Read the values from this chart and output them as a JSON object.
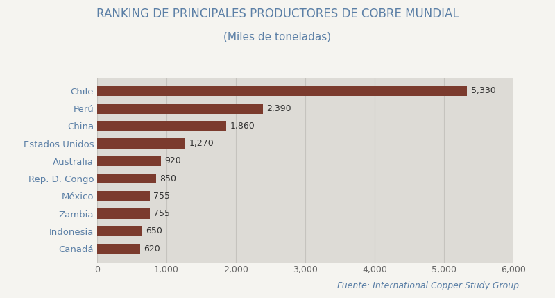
{
  "title_line1": "RANKING DE PRINCIPALES PRODUCTORES DE COBRE MUNDIAL",
  "title_line2": "(Miles de toneladas)",
  "title_color": "#5b7fa6",
  "subtitle_color": "#5b7fa6",
  "categories": [
    "Chile",
    "Perú",
    "China",
    "Estados Unidos",
    "Australia",
    "Rep. D. Congo",
    "México",
    "Zambia",
    "Indonesia",
    "Canadá"
  ],
  "values": [
    5330,
    2390,
    1860,
    1270,
    920,
    850,
    755,
    755,
    650,
    620
  ],
  "bar_color": "#7b3b2e",
  "value_label_color": "#333333",
  "background_color": "#f5f4f0",
  "plot_bg_color": "#dddbd6",
  "grid_color": "#c5c3be",
  "label_color": "#5b7fa6",
  "source_text": "Fuente: International Copper Study Group",
  "source_color": "#5b7fa6",
  "xlim": [
    0,
    6000
  ],
  "xtick_values": [
    0,
    1000,
    2000,
    3000,
    4000,
    5000,
    6000
  ],
  "xtick_labels": [
    "0",
    "1,000",
    "2,000",
    "3,000",
    "4,000",
    "5,000",
    "6,000"
  ],
  "bar_height": 0.58,
  "title_fontsize": 12,
  "subtitle_fontsize": 11,
  "label_fontsize": 9.5,
  "value_fontsize": 9,
  "tick_fontsize": 9,
  "source_fontsize": 9
}
